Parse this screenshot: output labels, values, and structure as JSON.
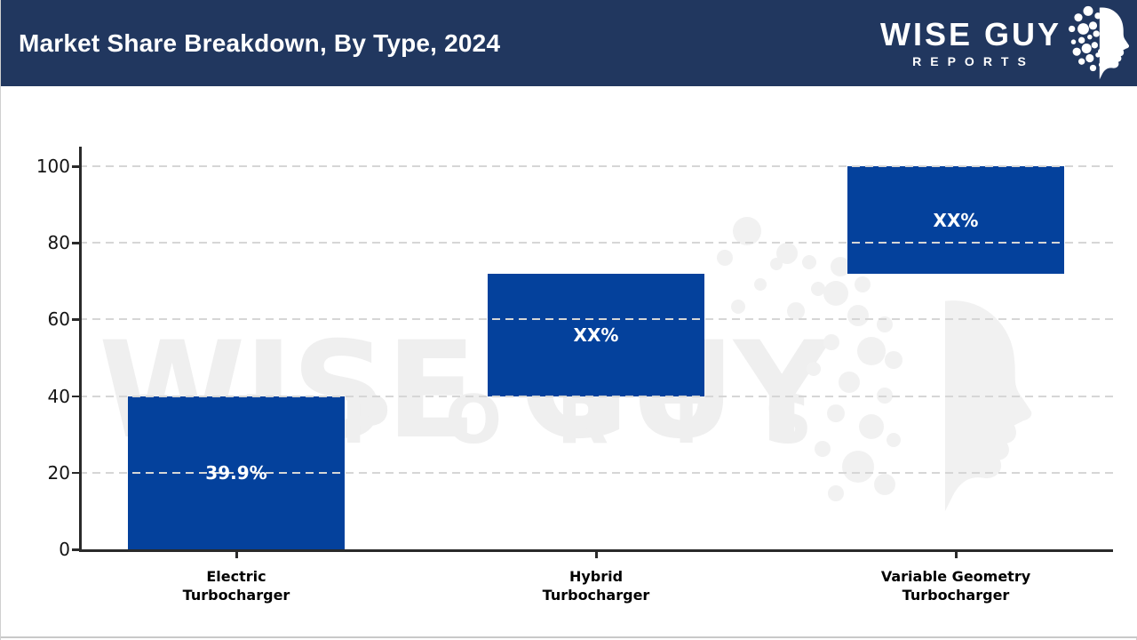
{
  "header": {
    "title": "Market Share Breakdown, By Type, 2024",
    "logo": {
      "primary": "WISE GUY",
      "secondary": "REPORTS"
    }
  },
  "watermark": {
    "primary": "WISE GUY",
    "secondary": "R E P O R T S"
  },
  "colors": {
    "header_bg": "#21375F",
    "bar": "#04419C",
    "axis": "#2a2a2a",
    "gridline": "#d6d6d6",
    "watermark": "#efefef"
  },
  "chart_data": {
    "type": "bar",
    "variant": "floating-stacked-percentage",
    "title": "Market Share Breakdown, By Type, 2024",
    "categories": [
      [
        "Electric",
        "Turbocharger"
      ],
      [
        "Hybrid",
        "Turbocharger"
      ],
      [
        "Variable Geometry",
        "Turbocharger"
      ]
    ],
    "segments": [
      {
        "category": "Electric Turbocharger",
        "start": 0,
        "end": 39.9,
        "label": "39.9%"
      },
      {
        "category": "Hybrid Turbocharger",
        "start": 39.9,
        "end": 71.9,
        "label": "XX%"
      },
      {
        "category": "Variable Geometry Turbocharger",
        "start": 71.9,
        "end": 100,
        "label": "XX%"
      }
    ],
    "yticks": [
      0,
      20,
      40,
      60,
      80,
      100
    ],
    "ylim": [
      0,
      105
    ],
    "xlabel": "",
    "ylabel": "",
    "legend": "none",
    "grid": {
      "horizontal": true,
      "style": "dashed"
    },
    "bar_color": "#04419C",
    "bar_label_color": "#ffffff"
  }
}
